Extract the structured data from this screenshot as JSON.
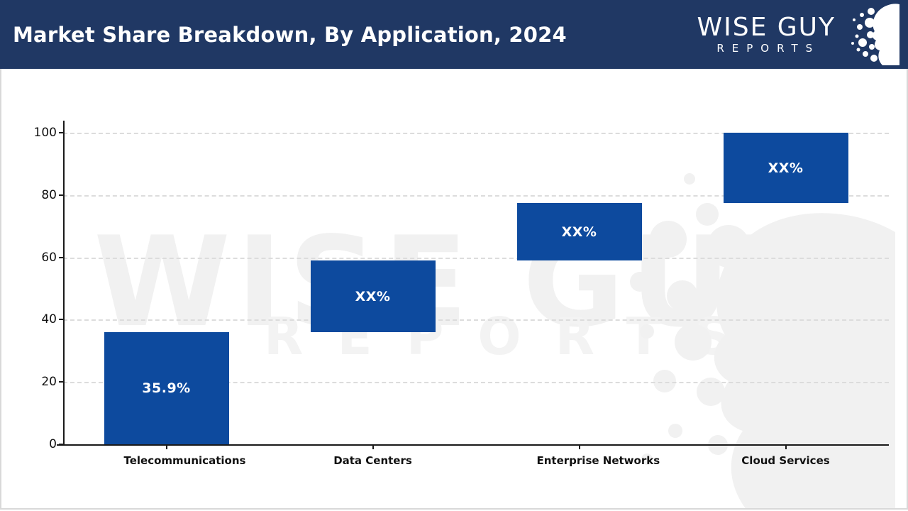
{
  "header": {
    "title": "Market Share Breakdown, By Application, 2024",
    "logo": {
      "line1": "WISE GUY",
      "line2": "REPORTS"
    },
    "bg_color": "#203864"
  },
  "watermark": {
    "line1": "WISE GUY",
    "line2": "REPORTS"
  },
  "chart_data": {
    "type": "bar",
    "subtype": "waterfall",
    "title": "Market Share Breakdown, By Application, 2024",
    "categories": [
      "Telecommunications",
      "Data Centers",
      "Enterprise Networks",
      "Cloud Services"
    ],
    "segments": [
      {
        "category": "Telecommunications",
        "start": 0,
        "end": 35.9,
        "label": "35.9%"
      },
      {
        "category": "Data Centers",
        "start": 35.9,
        "end": 59.0,
        "label": "XX%"
      },
      {
        "category": "Enterprise Networks",
        "start": 59.0,
        "end": 77.4,
        "label": "XX%"
      },
      {
        "category": "Cloud Services",
        "start": 77.4,
        "end": 100,
        "label": "XX%"
      }
    ],
    "yticks": [
      0,
      20,
      40,
      60,
      80,
      100
    ],
    "ylim": [
      0,
      104
    ],
    "xlabel": "",
    "ylabel": "",
    "grid": "horizontal-dashed",
    "legend": "none",
    "bar_color": "#0d4a9e",
    "bar_label_color": "#ffffff",
    "axis_color": "#1a1a1a",
    "gridline_color": "#dcdcdc"
  }
}
